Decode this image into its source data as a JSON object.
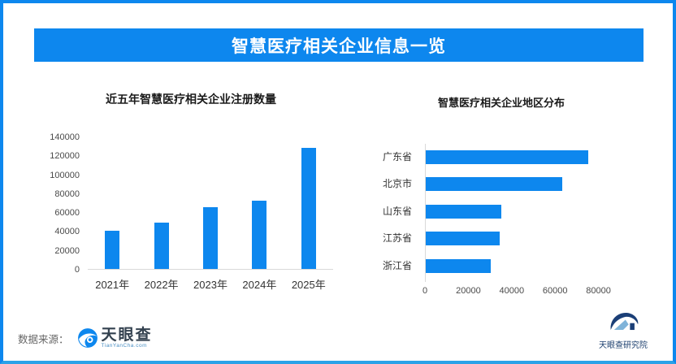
{
  "header": {
    "title": "智慧医疗相关企业信息一览",
    "accent_color": "#0d87ee"
  },
  "chart_data": [
    {
      "type": "bar",
      "orientation": "vertical",
      "title": "近五年智慧医疗相关企业注册数量",
      "categories": [
        "2021年",
        "2022年",
        "2023年",
        "2024年",
        "2025年"
      ],
      "values": [
        40000,
        49000,
        65000,
        72000,
        128000
      ],
      "xlabel": "",
      "ylabel": "",
      "ylim": [
        0,
        140000
      ],
      "yticks": [
        0,
        20000,
        40000,
        60000,
        80000,
        100000,
        120000,
        140000
      ],
      "grid": false,
      "legend": "none",
      "bar_color": "#0d87ee"
    },
    {
      "type": "bar",
      "orientation": "horizontal",
      "title": "智慧医疗相关企业地区分布",
      "categories": [
        "广东省",
        "北京市",
        "山东省",
        "江苏省",
        "浙江省"
      ],
      "values": [
        75000,
        63000,
        35000,
        34000,
        30000
      ],
      "xlabel": "",
      "ylabel": "",
      "xlim": [
        0,
        90000
      ],
      "xticks": [
        0,
        20000,
        40000,
        60000,
        80000
      ],
      "grid": false,
      "legend": "none",
      "bar_color": "#0d87ee"
    }
  ],
  "footer": {
    "source_label": "数据来源：",
    "source_logo_text": "天眼查",
    "source_logo_sub": "TianYanCha.com",
    "research_logo_text": "天眼查研究院"
  }
}
